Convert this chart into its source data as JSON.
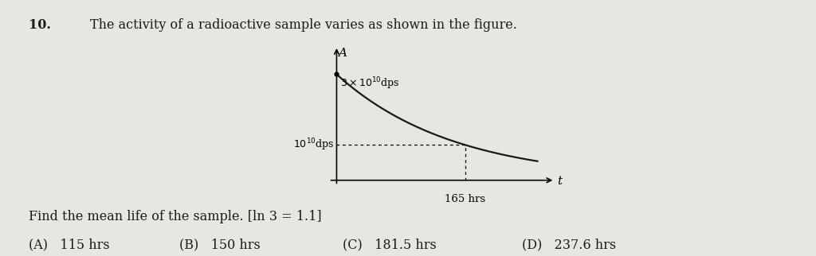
{
  "question_number": "10.",
  "question_text": "The activity of a radioactive sample varies as shown in the figure.",
  "find_text": "Find the mean life of the sample. [ln 3 = 1.1]",
  "options": [
    {
      "label": "(A)",
      "value": "115 hrs"
    },
    {
      "label": "(B)",
      "value": "150 hrs"
    },
    {
      "label": "(C)",
      "value": "181.5 hrs"
    },
    {
      "label": "(D)",
      "value": "237.6 hrs"
    }
  ],
  "graph": {
    "x_axis_label": "t",
    "y_axis_label": "A",
    "x_max": 280,
    "y_max": 3.8,
    "reference_time": 165,
    "reference_activity": 1.0,
    "initial_activity": 3.0,
    "time_label": "165 hrs",
    "init_label": "3 \\times 10^{10} dps",
    "ref_label": "10^{10} dps",
    "background_color": "#e8e6e0",
    "curve_color": "#1a1a1a",
    "text_color": "#1a1a1a"
  }
}
